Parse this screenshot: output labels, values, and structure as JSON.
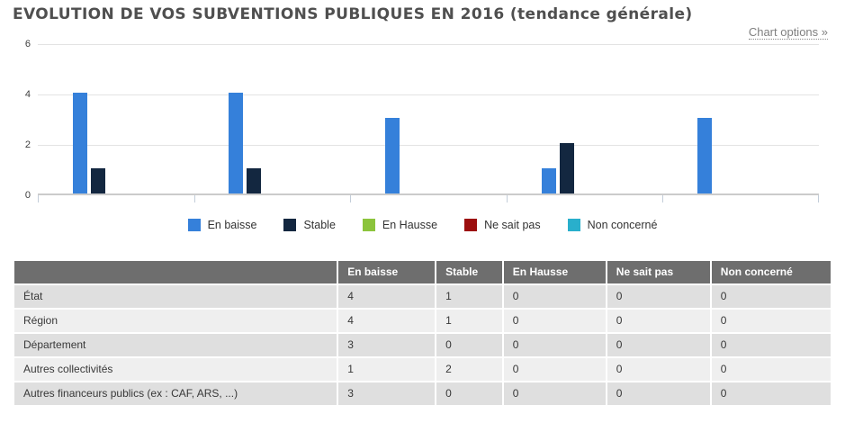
{
  "page": {
    "title": "EVOLUTION DE VOS SUBVENTIONS PUBLIQUES EN 2016 (tendance générale)",
    "chart_options_label": "Chart options »"
  },
  "chart_data": {
    "type": "bar",
    "title": "EVOLUTION DE VOS SUBVENTIONS PUBLIQUES EN 2016 (tendance générale)",
    "categories": [
      "État",
      "Région",
      "Département",
      "Autres collectivités",
      "Autres financeurs publics (ex : CAF, ARS, ...)"
    ],
    "series": [
      {
        "name": "En baisse",
        "color": "#3580da",
        "values": [
          4,
          4,
          3,
          1,
          3
        ]
      },
      {
        "name": "Stable",
        "color": "#132740",
        "values": [
          1,
          1,
          0,
          2,
          0
        ]
      },
      {
        "name": "En Hausse",
        "color": "#8cc43c",
        "values": [
          0,
          0,
          0,
          0,
          0
        ]
      },
      {
        "name": "Ne sait pas",
        "color": "#9c0e0e",
        "values": [
          0,
          0,
          0,
          0,
          0
        ]
      },
      {
        "name": "Non concerné",
        "color": "#29afcc",
        "values": [
          0,
          0,
          0,
          0,
          0
        ]
      }
    ],
    "ylim": [
      0,
      6
    ],
    "yticks": [
      0,
      2,
      4,
      6
    ],
    "grid": true,
    "legend_position": "bottom",
    "category_axis_labels_visible": false
  },
  "legend": {
    "items": [
      {
        "label": "En baisse",
        "color": "#3580da"
      },
      {
        "label": "Stable",
        "color": "#132740"
      },
      {
        "label": "En Hausse",
        "color": "#8cc43c"
      },
      {
        "label": "Ne sait pas",
        "color": "#9c0e0e"
      },
      {
        "label": "Non concerné",
        "color": "#29afcc"
      }
    ]
  },
  "table": {
    "header": [
      "",
      "En baisse",
      "Stable",
      "En Hausse",
      "Ne sait pas",
      "Non concerné"
    ],
    "rows": [
      {
        "label": "État",
        "values": [
          "4",
          "1",
          "0",
          "0",
          "0"
        ]
      },
      {
        "label": "Région",
        "values": [
          "4",
          "1",
          "0",
          "0",
          "0"
        ]
      },
      {
        "label": "Département",
        "values": [
          "3",
          "0",
          "0",
          "0",
          "0"
        ]
      },
      {
        "label": "Autres collectivités",
        "values": [
          "1",
          "2",
          "0",
          "0",
          "0"
        ]
      },
      {
        "label": "Autres financeurs publics (ex : CAF, ARS, ...)",
        "values": [
          "3",
          "0",
          "0",
          "0",
          "0"
        ]
      }
    ]
  },
  "colors": {
    "title_text": "#4f4f4f",
    "table_header_bg": "#6e6e6e",
    "table_row_dark": "#dfdfdf",
    "table_row_light": "#efefef",
    "gridline": "#e3e3e3",
    "axis_baseline": "#cbcbcb"
  }
}
